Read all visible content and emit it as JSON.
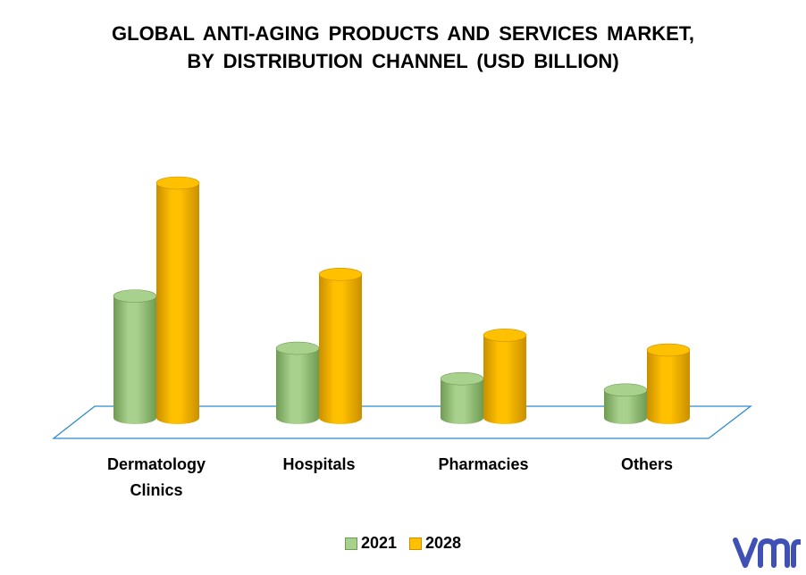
{
  "title_lines": [
    "GLOBAL ANTI-AGING PRODUCTS AND SERVICES MARKET,",
    "BY DISTRIBUTION CHANNEL (USD BILLION)"
  ],
  "colors": {
    "series_2021": "#A9D18E",
    "series_2021_dark": "#6E9B52",
    "series_2028": "#FFC000",
    "series_2028_dark": "#C98F00",
    "floor_line": "#2E8BCB",
    "logo": "#3F51B5"
  },
  "logo_text": "vmr",
  "chart_data": {
    "type": "bar",
    "categories": [
      "Dermatology Clinics",
      "Hospitals",
      "Pharmacies",
      "Others"
    ],
    "category_lines": [
      [
        "Dermatology",
        "Clinics"
      ],
      [
        "Hospitals"
      ],
      [
        "Pharmacies"
      ],
      [
        "Others"
      ]
    ],
    "series": [
      {
        "name": "2021",
        "values": [
          14,
          8,
          4.5,
          3.2
        ]
      },
      {
        "name": "2028",
        "values": [
          27,
          16.5,
          9.5,
          7.8
        ]
      }
    ],
    "title": "GLOBAL ANTI-AGING PRODUCTS AND SERVICES MARKET, BY DISTRIBUTION CHANNEL (USD BILLION)",
    "xlabel": "",
    "ylabel": "",
    "ylim": [
      0,
      30
    ],
    "grid": false,
    "legend_position": "bottom",
    "style": "3d-cylinder"
  }
}
